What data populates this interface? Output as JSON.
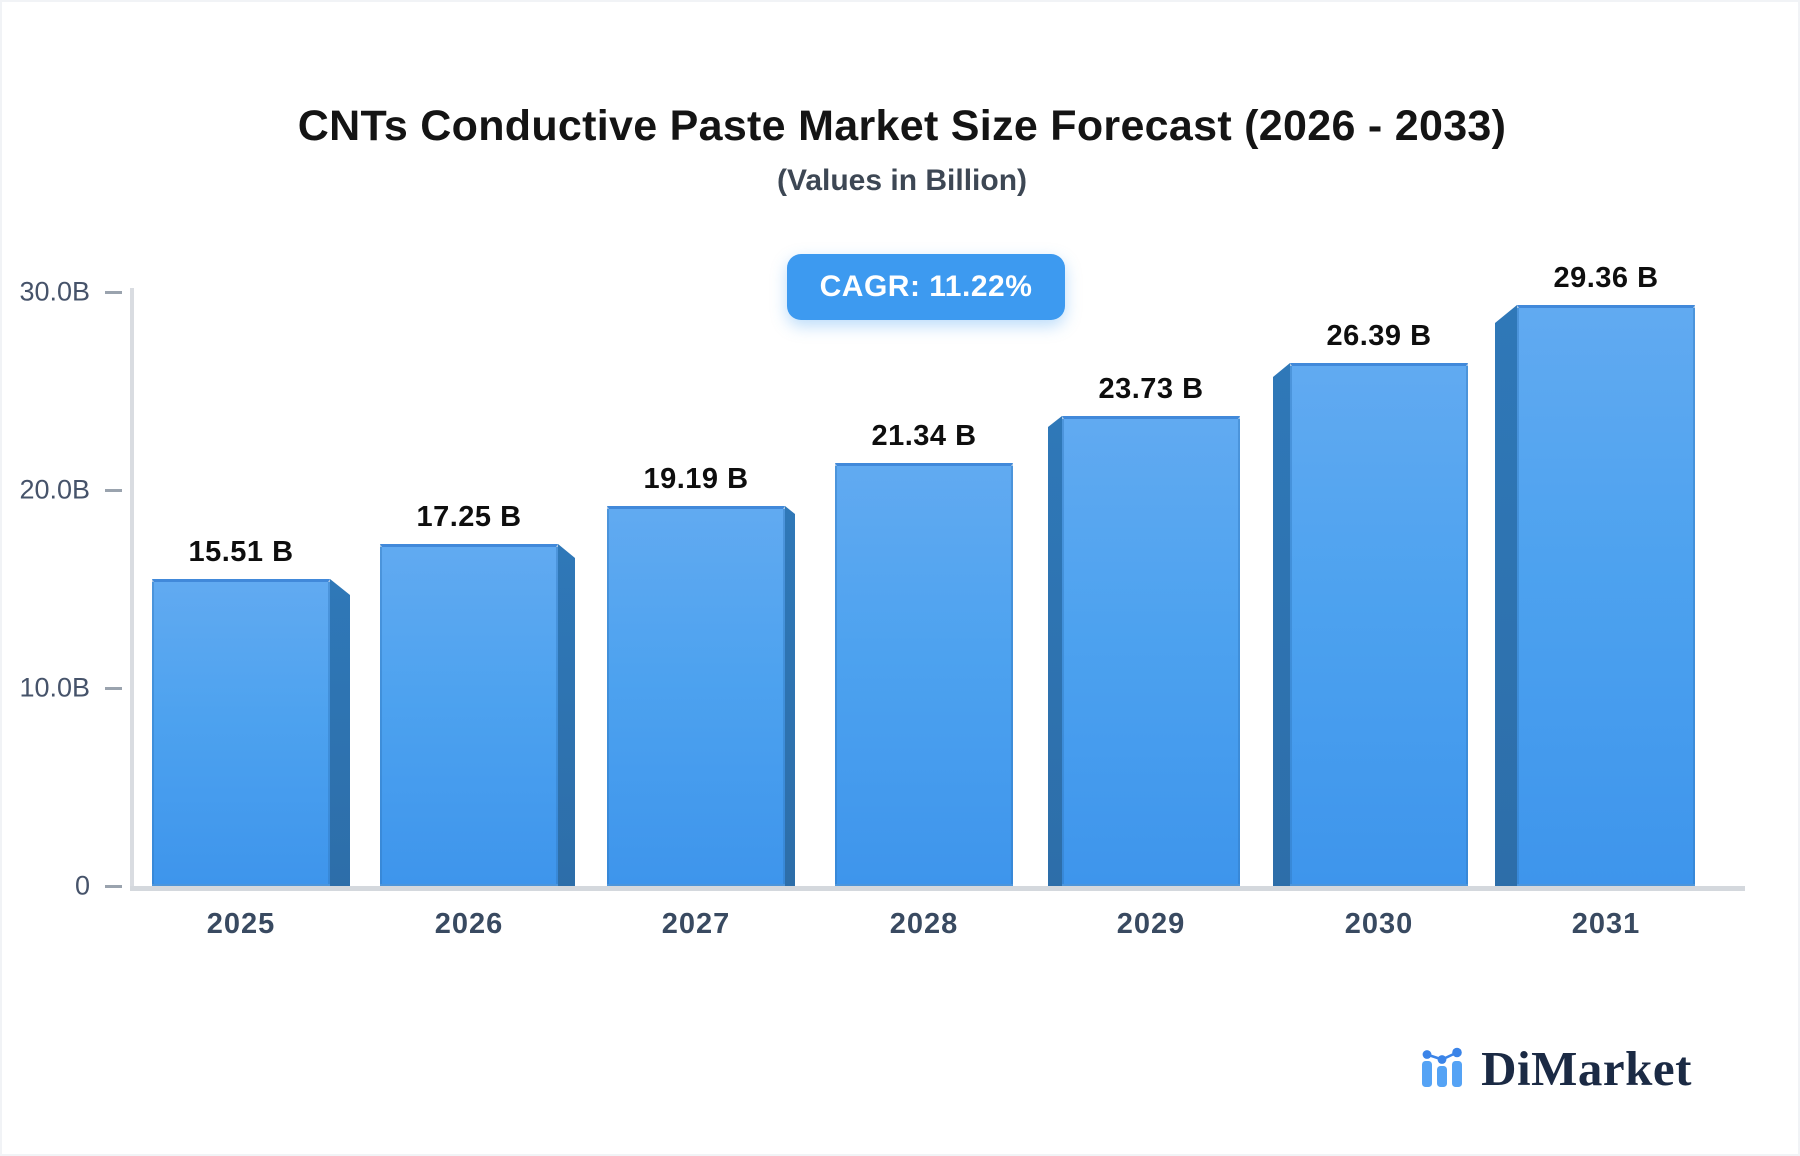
{
  "chart_data": {
    "type": "bar",
    "title": "CNTs Conductive Paste Market Size Forecast (2026 - 2033)",
    "subtitle": "(Values in Billion)",
    "cagr_label": "CAGR: 11.22%",
    "categories": [
      "2025",
      "2026",
      "2027",
      "2028",
      "2029",
      "2030",
      "2031"
    ],
    "values": [
      15.51,
      17.25,
      19.19,
      21.34,
      23.73,
      26.39,
      29.36
    ],
    "value_labels": [
      "15.51 B",
      "17.25 B",
      "19.19 B",
      "21.34 B",
      "23.73 B",
      "26.39 B",
      "29.36 B"
    ],
    "y_ticks": [
      {
        "value": 0,
        "label": "0"
      },
      {
        "value": 10,
        "label": "10.0B"
      },
      {
        "value": 20,
        "label": "20.0B"
      },
      {
        "value": 30,
        "label": "30.0B"
      }
    ],
    "ylim": [
      0,
      30
    ],
    "grid": "off",
    "legend": "none",
    "bar_style": "3d-bevel",
    "colors": {
      "bar_top": "#61aaf1",
      "bar_bottom": "#3e95ec",
      "bar_side": "#2d72b0",
      "badge_bg": "#3d9af0",
      "axis_line": "#d9dce1",
      "tick_text": "#46536a",
      "category_text": "#394a61",
      "value_text": "#0e0e0e"
    }
  },
  "brand": {
    "name": "DiMarket"
  }
}
